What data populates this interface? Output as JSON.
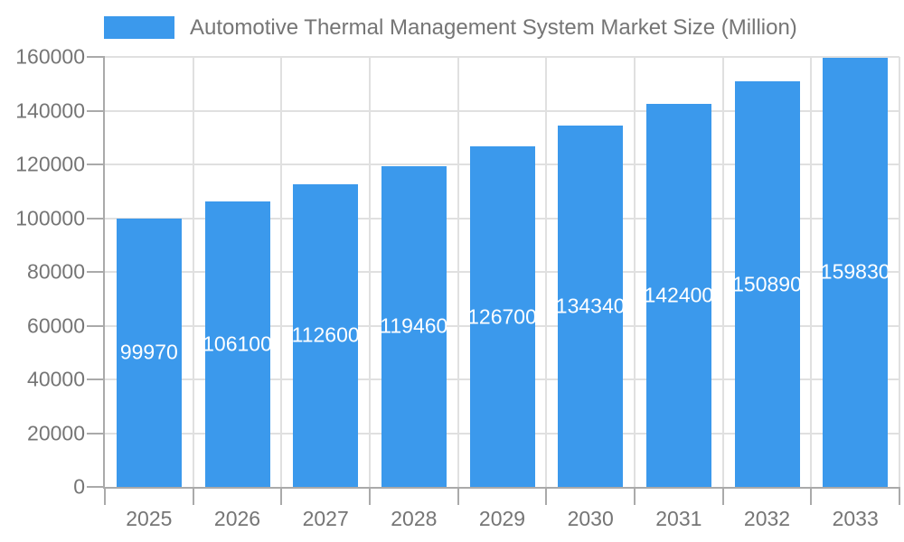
{
  "chart_data": {
    "type": "bar",
    "title": "Automotive Thermal Management System Market Size (Million)",
    "categories": [
      "2025",
      "2026",
      "2027",
      "2028",
      "2029",
      "2030",
      "2031",
      "2032",
      "2033"
    ],
    "values": [
      99970,
      106100,
      112600,
      119460,
      126700,
      134340,
      142400,
      150890,
      159830
    ],
    "xlabel": "",
    "ylabel": "",
    "ylim": [
      0,
      160000
    ],
    "ytick_step": 20000,
    "yticks": [
      0,
      20000,
      40000,
      60000,
      80000,
      100000,
      120000,
      140000,
      160000
    ],
    "grid": true,
    "legend_position": "top",
    "value_label_position": "inside-middle",
    "colors": {
      "bar": "#3B99EC",
      "bar_label_text": "#FFFFFF",
      "axis_text": "#757575",
      "gridline": "#E0E0E0",
      "axis_line": "#AAAAAA",
      "background": "#FFFFFF"
    }
  }
}
